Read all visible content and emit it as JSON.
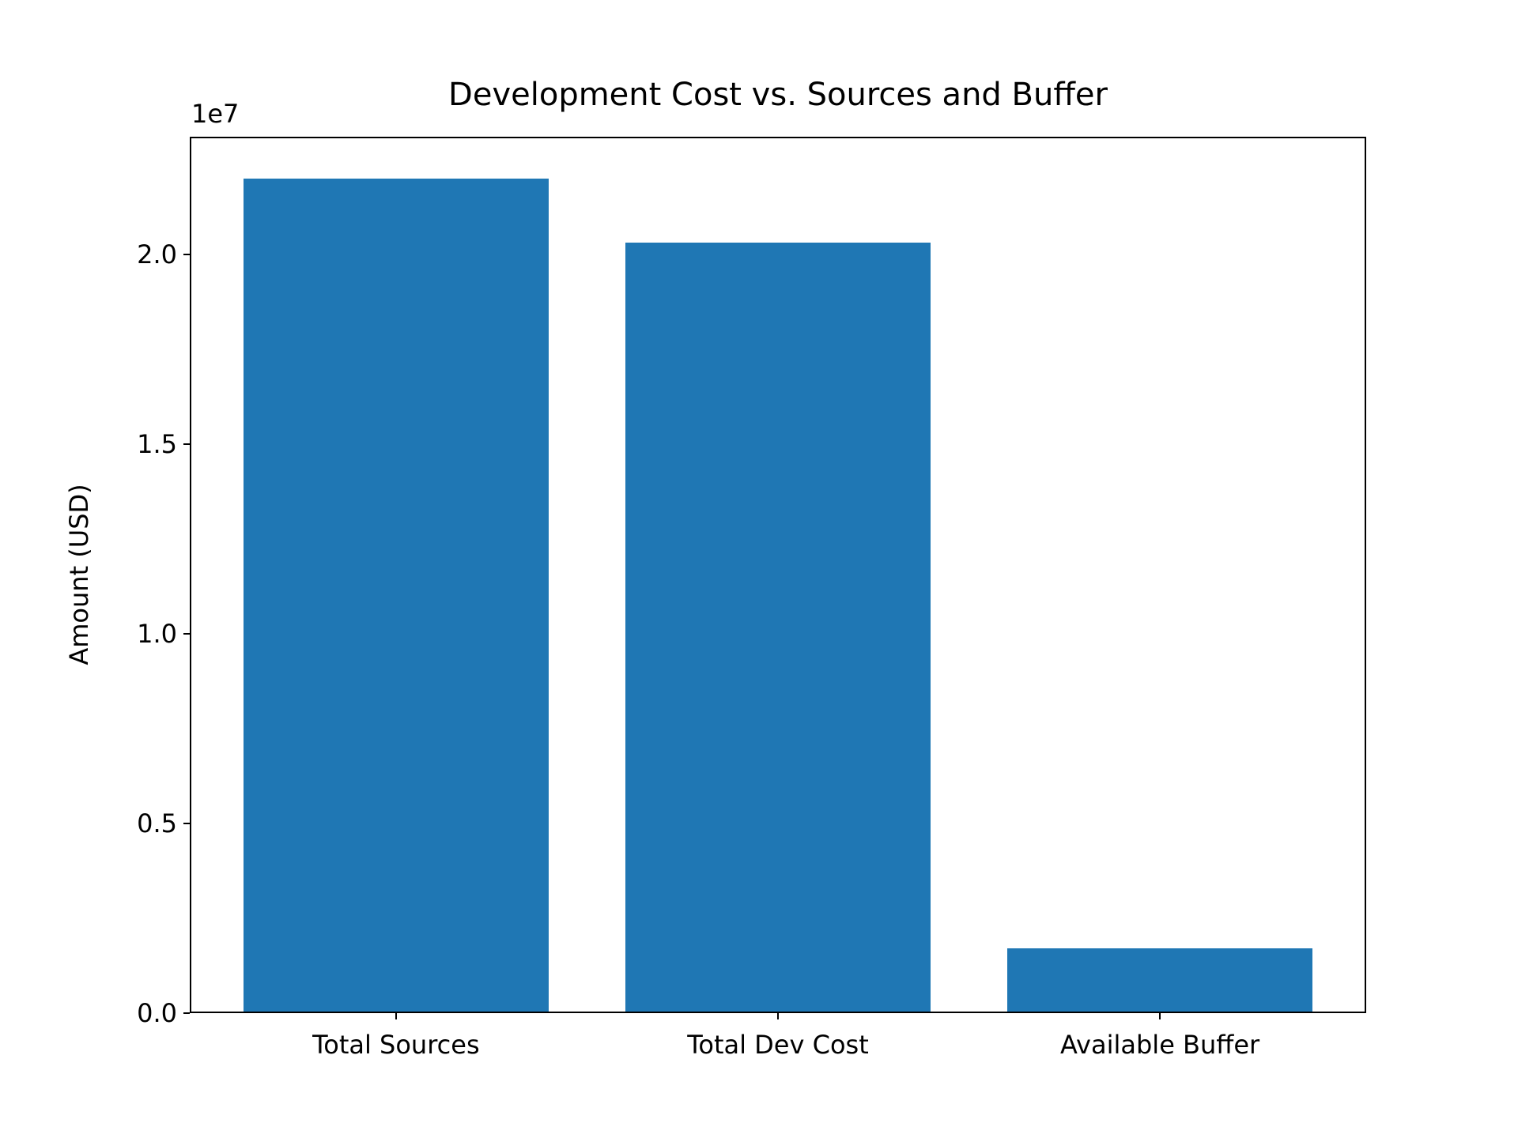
{
  "chart_data": {
    "type": "bar",
    "title": "Development Cost vs. Sources and Buffer",
    "xlabel": "",
    "ylabel": "Amount (USD)",
    "offset_text": "1e7",
    "categories": [
      "Total Sources",
      "Total Dev Cost",
      "Available Buffer"
    ],
    "values": [
      22000000,
      20300000,
      1700000
    ],
    "ylim": [
      0,
      23100000
    ],
    "yticks": {
      "values": [
        0,
        5000000,
        10000000,
        15000000,
        20000000
      ],
      "labels": [
        "0.0",
        "0.5",
        "1.0",
        "1.5",
        "2.0"
      ]
    },
    "bar_color": "#1f77b4",
    "axis_color": "#000000",
    "background_color": "#ffffff",
    "grid": false,
    "legend_position": "none"
  }
}
